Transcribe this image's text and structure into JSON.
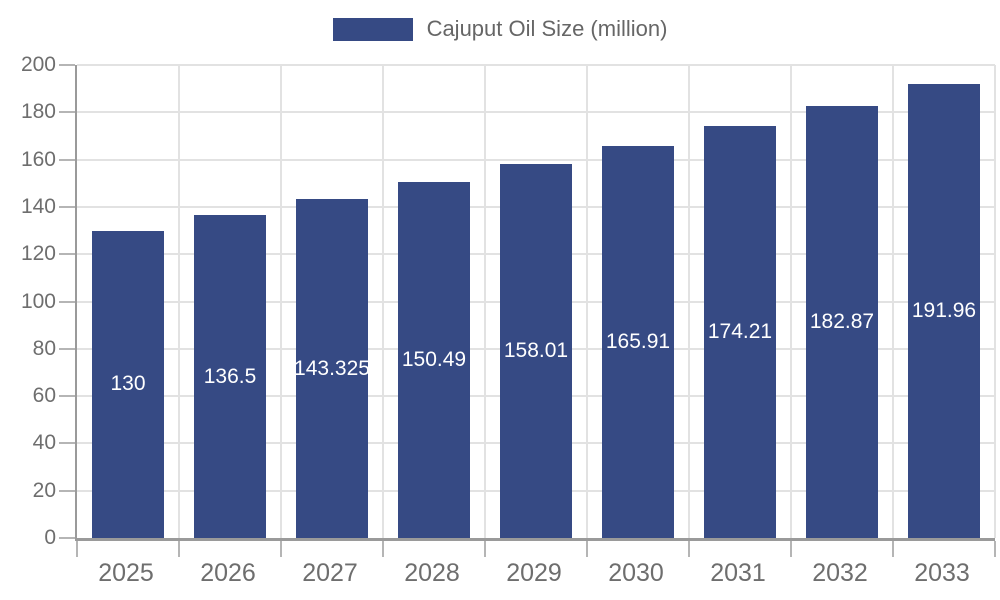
{
  "legend": {
    "label": "Cajuput Oil Size (million)"
  },
  "colors": {
    "bar": "#364a84",
    "data_label": "#ffffff",
    "grid": "#e2e2e2",
    "axis": "#9a9a9a",
    "tick": "#b5b5b5",
    "axis_label": "#6e6e6e",
    "legend_text": "#666666",
    "background": "#ffffff"
  },
  "chart_data": {
    "type": "bar",
    "title": "Cajuput Oil Size (million)",
    "categories": [
      "2025",
      "2026",
      "2027",
      "2028",
      "2029",
      "2030",
      "2031",
      "2032",
      "2033"
    ],
    "values": [
      130,
      136.5,
      143.325,
      150.49,
      158.01,
      165.91,
      174.21,
      182.87,
      191.96
    ],
    "value_labels": [
      "130",
      "136.5",
      "143.325",
      "150.49",
      "158.01",
      "165.91",
      "174.21",
      "182.87",
      "191.96"
    ],
    "xlabel": "",
    "ylabel": "",
    "ylim": [
      0,
      200
    ],
    "y_tick_step": 20,
    "y_tick_labels": [
      "0",
      "20",
      "40",
      "60",
      "80",
      "100",
      "120",
      "140",
      "160",
      "180",
      "200"
    ],
    "grid": true,
    "legend_position": "top-center"
  }
}
